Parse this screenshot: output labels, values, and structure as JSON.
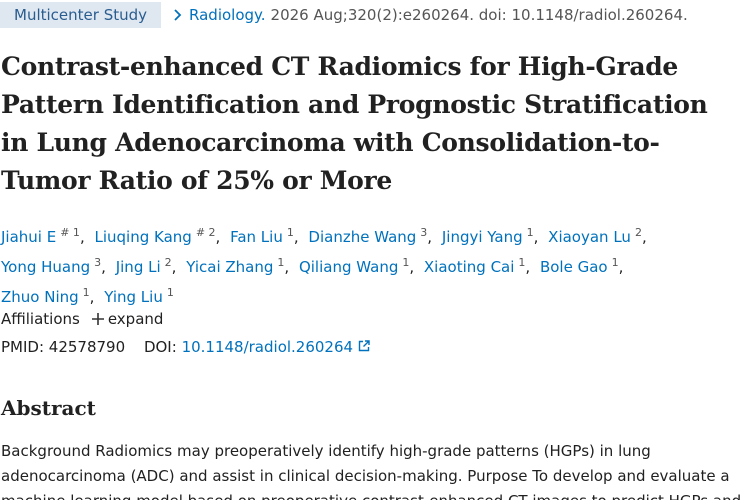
{
  "header": {
    "badge": "Multicenter Study",
    "journal": "Radiology.",
    "citation": "2026 Aug;320(2):e260264. doi: 10.1148/radiol.260264."
  },
  "title_lines": [
    "Contrast-enhanced CT Radiomics for High-Grade",
    "Pattern Identification and Prognostic Stratification",
    "in Lung Adenocarcinoma with Consolidation-to-",
    "Tumor Ratio of 25% or More"
  ],
  "authors": [
    {
      "name": "Jiahui E",
      "sup": "# 1"
    },
    {
      "name": "Liuqing Kang",
      "sup": "# 2"
    },
    {
      "name": "Fan Liu",
      "sup": "1"
    },
    {
      "name": "Dianzhe Wang",
      "sup": "3"
    },
    {
      "name": "Jingyi Yang",
      "sup": "1"
    },
    {
      "name": "Xiaoyan Lu",
      "sup": "2"
    },
    {
      "name": "Yong Huang",
      "sup": "3"
    },
    {
      "name": "Jing Li",
      "sup": "2"
    },
    {
      "name": "Yicai Zhang",
      "sup": "1"
    },
    {
      "name": "Qiliang Wang",
      "sup": "1"
    },
    {
      "name": "Xiaoting Cai",
      "sup": "1"
    },
    {
      "name": "Bole Gao",
      "sup": "1"
    },
    {
      "name": "Zhuo Ning",
      "sup": "1"
    },
    {
      "name": "Ying Liu",
      "sup": "1"
    }
  ],
  "affiliations": {
    "label": "Affiliations",
    "toggle": "expand"
  },
  "ids": {
    "pmid_label": "PMID:",
    "pmid": "42578790",
    "doi_label": "DOI:",
    "doi": "10.1148/radiol.260264"
  },
  "abstract": {
    "heading": "Abstract",
    "lines": [
      "Background Radiomics may preoperatively identify high-grade patterns (HGPs) in lung",
      "adenocarcinoma (ADC) and assist in clinical decision-making. Purpose To develop and evaluate a",
      "machine learning model based on preoperative contrast-enhanced CT images to predict HGPs and"
    ]
  }
}
